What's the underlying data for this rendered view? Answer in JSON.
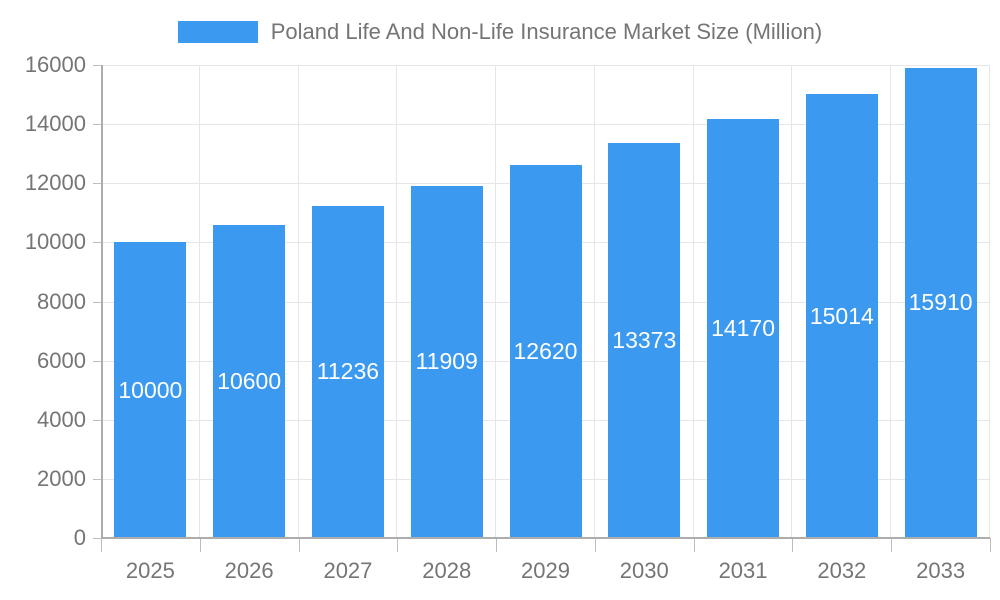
{
  "legend": {
    "label": "Poland Life And Non-Life Insurance Market Size (Million)"
  },
  "chart_data": {
    "type": "bar",
    "title": "Poland Life And Non-Life Insurance Market Size (Million)",
    "xlabel": "",
    "ylabel": "",
    "categories": [
      "2025",
      "2026",
      "2027",
      "2028",
      "2029",
      "2030",
      "2031",
      "2032",
      "2033"
    ],
    "series": [
      {
        "name": "Poland Life And Non-Life Insurance Market Size (Million)",
        "values": [
          10000,
          10600,
          11236,
          11909,
          12620,
          13373,
          14170,
          15014,
          15910
        ]
      }
    ],
    "value_labels_position": "inside-center",
    "ylim": [
      0,
      16000
    ],
    "yticks": [
      0,
      2000,
      4000,
      6000,
      8000,
      10000,
      12000,
      14000,
      16000
    ],
    "grid": true,
    "legend_position": "top-center",
    "colors": {
      "bar": "#3b99ef",
      "gridline": "#e6e6e6",
      "axis": "#adadad",
      "tick": "#bdbdbd",
      "label_text": "#757575",
      "bar_value_text": "#ffffff",
      "background": "#ffffff"
    }
  }
}
